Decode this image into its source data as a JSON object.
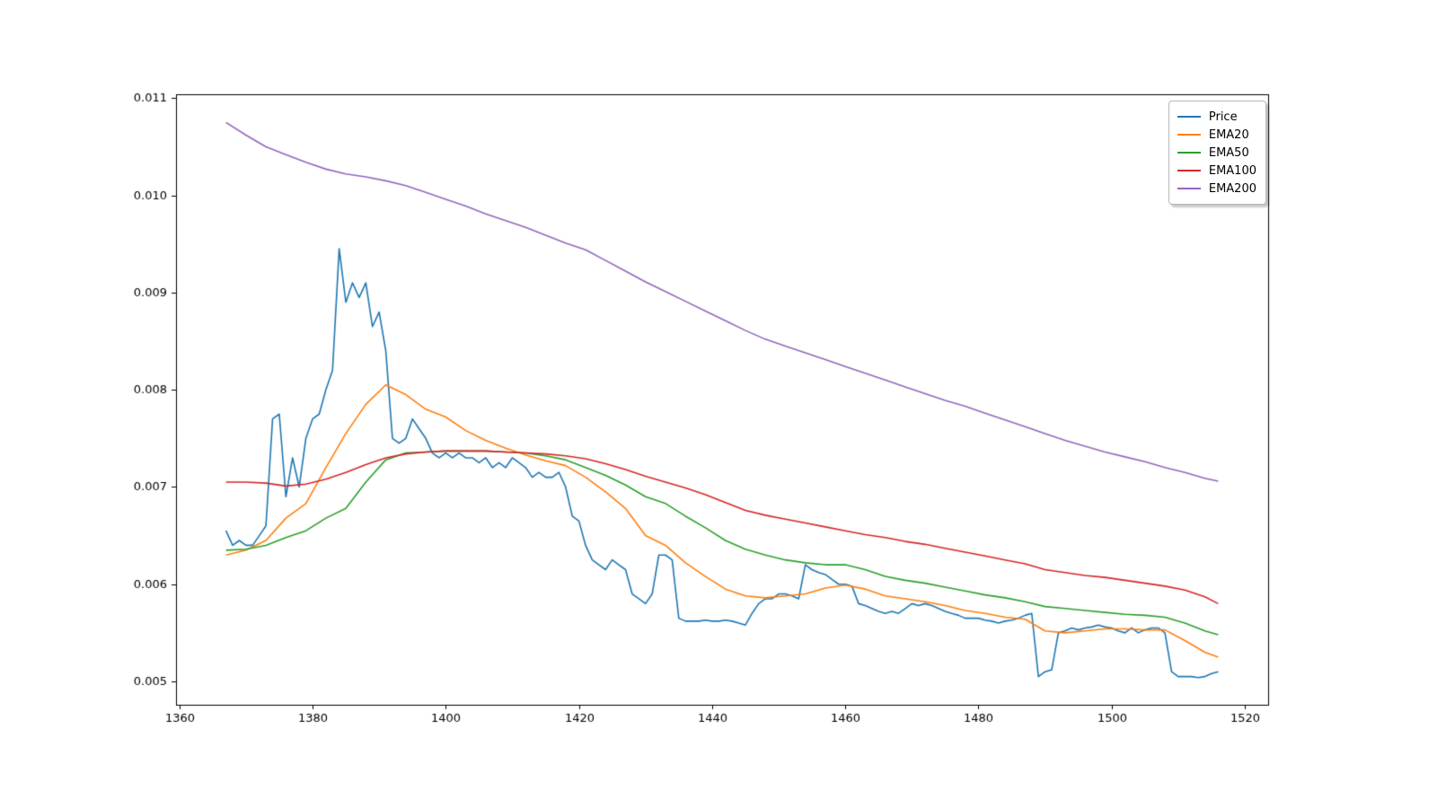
{
  "chart_data": {
    "type": "line",
    "title": "",
    "xlabel": "",
    "ylabel": "",
    "grid": false,
    "legend_position": "upper right",
    "xlim": [
      1359.5,
      1523.5
    ],
    "ylim": [
      0.00476,
      0.01104
    ],
    "xticks": [
      1360,
      1380,
      1400,
      1420,
      1440,
      1460,
      1480,
      1500,
      1520
    ],
    "yticks": [
      0.005,
      0.006,
      0.007,
      0.008,
      0.009,
      0.01,
      0.011
    ],
    "axis_color": "#000000",
    "background_color": "#ffffff",
    "series": [
      {
        "name": "Price",
        "color": "#1f77b4",
        "x": [
          1367,
          1368,
          1369,
          1370,
          1371,
          1372,
          1373,
          1374,
          1375,
          1376,
          1377,
          1378,
          1379,
          1380,
          1381,
          1382,
          1383,
          1384,
          1385,
          1386,
          1387,
          1388,
          1389,
          1390,
          1391,
          1392,
          1393,
          1394,
          1395,
          1396,
          1397,
          1398,
          1399,
          1400,
          1401,
          1402,
          1403,
          1404,
          1405,
          1406,
          1407,
          1408,
          1409,
          1410,
          1411,
          1412,
          1413,
          1414,
          1415,
          1416,
          1417,
          1418,
          1419,
          1420,
          1421,
          1422,
          1423,
          1424,
          1425,
          1426,
          1427,
          1428,
          1429,
          1430,
          1431,
          1432,
          1433,
          1434,
          1435,
          1436,
          1437,
          1438,
          1439,
          1440,
          1441,
          1442,
          1443,
          1444,
          1445,
          1446,
          1447,
          1448,
          1449,
          1450,
          1451,
          1452,
          1453,
          1454,
          1455,
          1456,
          1457,
          1458,
          1459,
          1460,
          1461,
          1462,
          1463,
          1464,
          1465,
          1466,
          1467,
          1468,
          1469,
          1470,
          1471,
          1472,
          1473,
          1474,
          1475,
          1476,
          1477,
          1478,
          1479,
          1480,
          1481,
          1482,
          1483,
          1484,
          1485,
          1486,
          1487,
          1488,
          1489,
          1490,
          1491,
          1492,
          1493,
          1494,
          1495,
          1496,
          1497,
          1498,
          1499,
          1500,
          1501,
          1502,
          1503,
          1504,
          1505,
          1506,
          1507,
          1508,
          1509,
          1510,
          1511,
          1512,
          1513,
          1514,
          1515,
          1516
        ],
        "y": [
          0.00655,
          0.0064,
          0.00645,
          0.0064,
          0.0064,
          0.0065,
          0.0066,
          0.0077,
          0.00775,
          0.0069,
          0.0073,
          0.007,
          0.0075,
          0.0077,
          0.00775,
          0.008,
          0.0082,
          0.00945,
          0.0089,
          0.0091,
          0.00895,
          0.0091,
          0.00865,
          0.0088,
          0.0084,
          0.0075,
          0.00745,
          0.0075,
          0.0077,
          0.0076,
          0.0075,
          0.00735,
          0.0073,
          0.00735,
          0.0073,
          0.00735,
          0.0073,
          0.0073,
          0.00725,
          0.0073,
          0.0072,
          0.00725,
          0.0072,
          0.0073,
          0.00725,
          0.0072,
          0.0071,
          0.00715,
          0.0071,
          0.0071,
          0.00715,
          0.007,
          0.0067,
          0.00665,
          0.0064,
          0.00625,
          0.0062,
          0.00615,
          0.00625,
          0.0062,
          0.00615,
          0.0059,
          0.00585,
          0.0058,
          0.0059,
          0.0063,
          0.0063,
          0.00625,
          0.00565,
          0.00562,
          0.00562,
          0.00562,
          0.00563,
          0.00562,
          0.00562,
          0.00563,
          0.00562,
          0.0056,
          0.00558,
          0.0057,
          0.0058,
          0.00585,
          0.00585,
          0.0059,
          0.0059,
          0.00588,
          0.00585,
          0.0062,
          0.00615,
          0.00612,
          0.0061,
          0.00605,
          0.006,
          0.006,
          0.00598,
          0.0058,
          0.00578,
          0.00575,
          0.00572,
          0.0057,
          0.00572,
          0.0057,
          0.00575,
          0.0058,
          0.00578,
          0.0058,
          0.00578,
          0.00575,
          0.00572,
          0.0057,
          0.00568,
          0.00565,
          0.00565,
          0.00565,
          0.00563,
          0.00562,
          0.0056,
          0.00562,
          0.00563,
          0.00565,
          0.00568,
          0.0057,
          0.00505,
          0.0051,
          0.00512,
          0.0055,
          0.00552,
          0.00555,
          0.00553,
          0.00555,
          0.00556,
          0.00558,
          0.00556,
          0.00555,
          0.00552,
          0.0055,
          0.00555,
          0.0055,
          0.00553,
          0.00555,
          0.00555,
          0.0055,
          0.0051,
          0.00505,
          0.00505,
          0.00505,
          0.00504,
          0.00505,
          0.00508,
          0.0051
        ]
      },
      {
        "name": "EMA20",
        "color": "#ff7f0e",
        "x": [
          1367,
          1370,
          1373,
          1376,
          1379,
          1382,
          1385,
          1388,
          1391,
          1394,
          1397,
          1400,
          1403,
          1406,
          1409,
          1412,
          1415,
          1418,
          1421,
          1424,
          1427,
          1430,
          1433,
          1436,
          1439,
          1442,
          1445,
          1448,
          1451,
          1454,
          1457,
          1460,
          1463,
          1466,
          1469,
          1472,
          1475,
          1478,
          1481,
          1484,
          1487,
          1490,
          1493,
          1496,
          1499,
          1502,
          1505,
          1508,
          1511,
          1514,
          1516
        ],
        "y": [
          0.0063,
          0.00635,
          0.00645,
          0.00668,
          0.00683,
          0.0072,
          0.00755,
          0.00785,
          0.00805,
          0.00795,
          0.0078,
          0.00772,
          0.00758,
          0.00748,
          0.0074,
          0.00733,
          0.00727,
          0.00722,
          0.0071,
          0.00695,
          0.00678,
          0.0065,
          0.0064,
          0.00622,
          0.00608,
          0.00595,
          0.00588,
          0.00586,
          0.00588,
          0.0059,
          0.00596,
          0.00599,
          0.00595,
          0.00588,
          0.00585,
          0.00582,
          0.00578,
          0.00573,
          0.0057,
          0.00566,
          0.00564,
          0.00552,
          0.0055,
          0.00552,
          0.00554,
          0.00554,
          0.00553,
          0.00553,
          0.00542,
          0.0053,
          0.00525
        ]
      },
      {
        "name": "EMA50",
        "color": "#2ca02c",
        "x": [
          1367,
          1370,
          1373,
          1376,
          1379,
          1382,
          1385,
          1388,
          1391,
          1394,
          1397,
          1400,
          1403,
          1406,
          1409,
          1412,
          1415,
          1418,
          1421,
          1424,
          1427,
          1430,
          1433,
          1436,
          1439,
          1442,
          1445,
          1448,
          1451,
          1454,
          1457,
          1460,
          1463,
          1466,
          1469,
          1472,
          1475,
          1478,
          1481,
          1484,
          1487,
          1490,
          1493,
          1496,
          1499,
          1502,
          1505,
          1508,
          1511,
          1514,
          1516
        ],
        "y": [
          0.00635,
          0.00636,
          0.0064,
          0.00648,
          0.00655,
          0.00668,
          0.00678,
          0.00705,
          0.00728,
          0.00735,
          0.00736,
          0.00737,
          0.00737,
          0.00737,
          0.00736,
          0.00735,
          0.00732,
          0.00728,
          0.0072,
          0.00712,
          0.00702,
          0.0069,
          0.00683,
          0.0067,
          0.00658,
          0.00645,
          0.00636,
          0.0063,
          0.00625,
          0.00622,
          0.0062,
          0.0062,
          0.00615,
          0.00608,
          0.00604,
          0.00601,
          0.00597,
          0.00593,
          0.00589,
          0.00586,
          0.00582,
          0.00577,
          0.00575,
          0.00573,
          0.00571,
          0.00569,
          0.00568,
          0.00566,
          0.0056,
          0.00552,
          0.00548
        ]
      },
      {
        "name": "EMA100",
        "color": "#d62728",
        "x": [
          1367,
          1370,
          1373,
          1376,
          1379,
          1382,
          1385,
          1388,
          1391,
          1394,
          1397,
          1400,
          1403,
          1406,
          1409,
          1412,
          1415,
          1418,
          1421,
          1424,
          1427,
          1430,
          1433,
          1436,
          1439,
          1442,
          1445,
          1448,
          1451,
          1454,
          1457,
          1460,
          1463,
          1466,
          1469,
          1472,
          1475,
          1478,
          1481,
          1484,
          1487,
          1490,
          1493,
          1496,
          1499,
          1502,
          1505,
          1508,
          1511,
          1514,
          1516
        ],
        "y": [
          0.00705,
          0.00705,
          0.00704,
          0.00701,
          0.00703,
          0.00708,
          0.00715,
          0.00723,
          0.0073,
          0.00734,
          0.00736,
          0.00737,
          0.00737,
          0.00737,
          0.00736,
          0.00735,
          0.00734,
          0.00732,
          0.00729,
          0.00724,
          0.00718,
          0.00711,
          0.00705,
          0.00699,
          0.00692,
          0.00684,
          0.00676,
          0.00671,
          0.00667,
          0.00663,
          0.00659,
          0.00655,
          0.00651,
          0.00648,
          0.00644,
          0.00641,
          0.00637,
          0.00633,
          0.00629,
          0.00625,
          0.00621,
          0.00615,
          0.00612,
          0.00609,
          0.00607,
          0.00604,
          0.00601,
          0.00598,
          0.00594,
          0.00587,
          0.0058
        ]
      },
      {
        "name": "EMA200",
        "color": "#9467bd",
        "x": [
          1367,
          1370,
          1373,
          1376,
          1379,
          1382,
          1385,
          1388,
          1391,
          1394,
          1397,
          1400,
          1403,
          1406,
          1409,
          1412,
          1415,
          1418,
          1421,
          1424,
          1427,
          1430,
          1433,
          1436,
          1439,
          1442,
          1445,
          1448,
          1451,
          1454,
          1457,
          1460,
          1463,
          1466,
          1469,
          1472,
          1475,
          1478,
          1481,
          1484,
          1487,
          1490,
          1493,
          1496,
          1499,
          1502,
          1505,
          1508,
          1511,
          1514,
          1516
        ],
        "y": [
          0.01075,
          0.01062,
          0.0105,
          0.01042,
          0.01034,
          0.01027,
          0.01022,
          0.01019,
          0.01015,
          0.0101,
          0.01003,
          0.00996,
          0.00989,
          0.00981,
          0.00974,
          0.00967,
          0.00959,
          0.00951,
          0.00944,
          0.00933,
          0.00922,
          0.00911,
          0.00901,
          0.00891,
          0.00881,
          0.00871,
          0.00861,
          0.00852,
          0.00845,
          0.00838,
          0.00831,
          0.00824,
          0.00817,
          0.0081,
          0.00803,
          0.00796,
          0.00789,
          0.00783,
          0.00776,
          0.00769,
          0.00762,
          0.00755,
          0.00748,
          0.00742,
          0.00736,
          0.00731,
          0.00726,
          0.0072,
          0.00715,
          0.00709,
          0.00706
        ]
      }
    ]
  }
}
